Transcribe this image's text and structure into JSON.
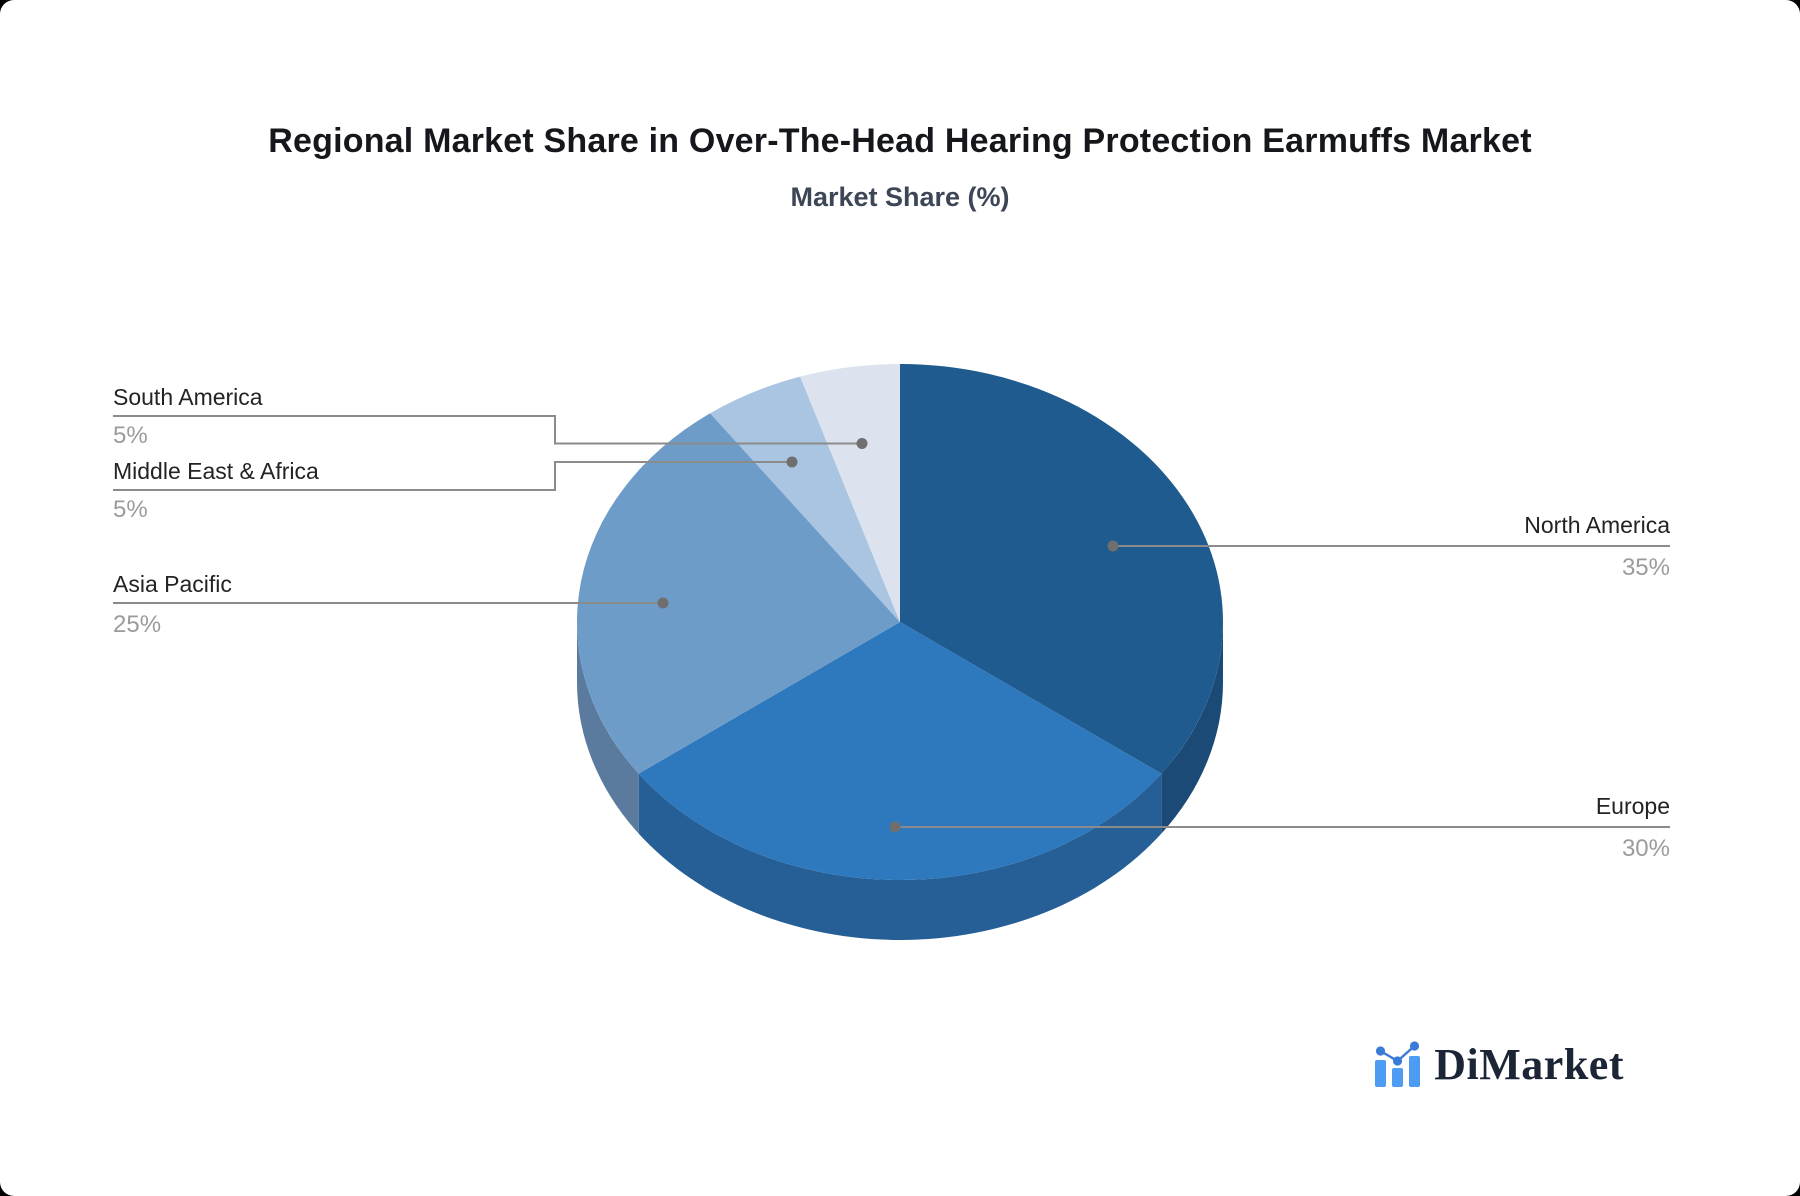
{
  "title": "Regional Market Share in Over-The-Head Hearing Protection Earmuffs Market",
  "subtitle": "Market Share (%)",
  "logo": {
    "name": "DiMarket",
    "icon": "bar-line-chart-icon"
  },
  "chart_data": {
    "type": "pie",
    "style": "3d",
    "title": "Regional Market Share in Over-The-Head Hearing Protection Earmuffs Market",
    "subtitle": "Market Share (%)",
    "unit": "%",
    "start_angle_deg": 0,
    "direction": "clockwise",
    "legend_position": "none",
    "labels_external": true,
    "slices": [
      {
        "label": "North America",
        "value": 35,
        "display": "35%",
        "color": "#1F5B8F",
        "side_color": "#1A4A75",
        "label_side": "right"
      },
      {
        "label": "Europe",
        "value": 30,
        "display": "30%",
        "color": "#2E78BE",
        "side_color": "#255F96",
        "label_side": "right"
      },
      {
        "label": "Asia Pacific",
        "value": 25,
        "display": "25%",
        "color": "#6E9CC9",
        "side_color": "#5A7A9E",
        "label_side": "left"
      },
      {
        "label": "Middle East & Africa",
        "value": 5,
        "display": "5%",
        "color": "#A9C5E1",
        "side_color": "#8FA9C4",
        "label_side": "left"
      },
      {
        "label": "South America",
        "value": 5,
        "display": "5%",
        "color": "#DCE3EE",
        "side_color": "#BCC6D6",
        "label_side": "left"
      }
    ],
    "colors": {
      "leader_line": "#8B8B8B",
      "leader_dot": "#6F6F6F",
      "label_text": "#232323",
      "value_text": "#9B9B9B",
      "title": "#15171d",
      "subtitle": "#3d4656",
      "logo_text": "#1b2535",
      "logo_accent": "#4D9BF2",
      "background": "#FFFFFF"
    }
  }
}
